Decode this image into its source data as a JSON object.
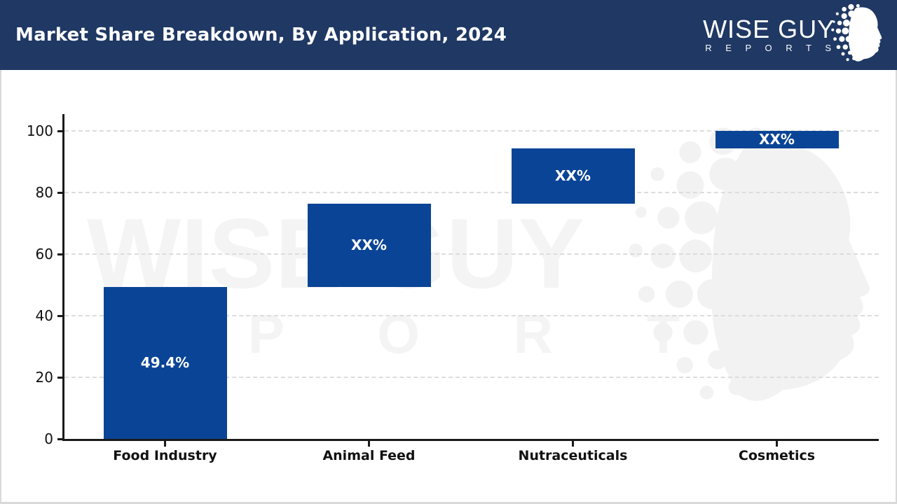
{
  "page": {
    "background": "#ffffff",
    "border_color": "#d9d9d9"
  },
  "header": {
    "background": "#1f3864",
    "title": "Market Share Breakdown, By Application, 2024",
    "logo": {
      "line1": "WISE GUY",
      "line2": "R E P O R T S"
    }
  },
  "watermark": {
    "line1": "WISE GUY",
    "line2": "P O R T S",
    "color": "#f4f4f4",
    "face_color": "#f2f2f2"
  },
  "chart_data": {
    "type": "bar",
    "subtype": "waterfall",
    "title": "Market Share Breakdown, By Application, 2024",
    "categories": [
      "Food Industry",
      "Animal Feed",
      "Nutraceuticals",
      "Cosmetics"
    ],
    "series": [
      {
        "name": "Market Share (%)",
        "segments": [
          {
            "category": "Food Industry",
            "start": 0,
            "end": 49.4,
            "label": "49.4%"
          },
          {
            "category": "Animal Feed",
            "start": 49.4,
            "end": 76.4,
            "label": "XX%"
          },
          {
            "category": "Nutraceuticals",
            "start": 76.4,
            "end": 94.4,
            "label": "XX%"
          },
          {
            "category": "Cosmetics",
            "start": 94.4,
            "end": 100,
            "label": "XX%"
          }
        ]
      }
    ],
    "xlabel": "",
    "ylabel": "",
    "ylim": [
      0,
      100
    ],
    "yticks": [
      0,
      20,
      40,
      60,
      80,
      100
    ],
    "grid": "horizontal-dashed",
    "legend": false,
    "bar_color": "#0a4496",
    "bar_label_color": "#ffffff",
    "axis_color": "#1a1a1a",
    "gridline_color": "#dcdcdc"
  }
}
